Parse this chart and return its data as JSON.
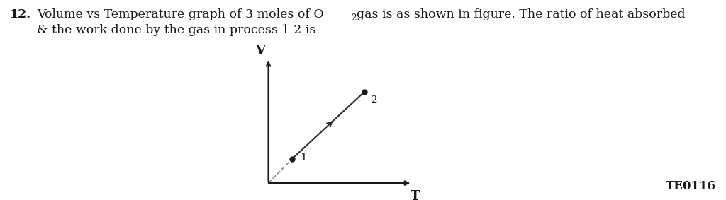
{
  "question_number": "12.",
  "question_text_line1": "Volume vs Temperature graph of 3 moles of O",
  "question_text_sub": "2",
  "question_text_line1_end": " gas is as shown in figure. The ratio of heat absorbed",
  "question_text_line2": "& the work done by the gas in process 1-2 is -",
  "code": "TE0116",
  "background_color": "#ffffff",
  "text_color": "#1a1a1a",
  "graph_line_color": "#2a2a2a",
  "dashed_line_color": "#888888",
  "point1": [
    0.18,
    0.22
  ],
  "point2": [
    0.72,
    0.82
  ],
  "axis_x_label": "T",
  "axis_y_label": "V",
  "label1": "1",
  "label2": "2",
  "fig_width": 10.24,
  "fig_height": 2.83,
  "dpi": 100
}
